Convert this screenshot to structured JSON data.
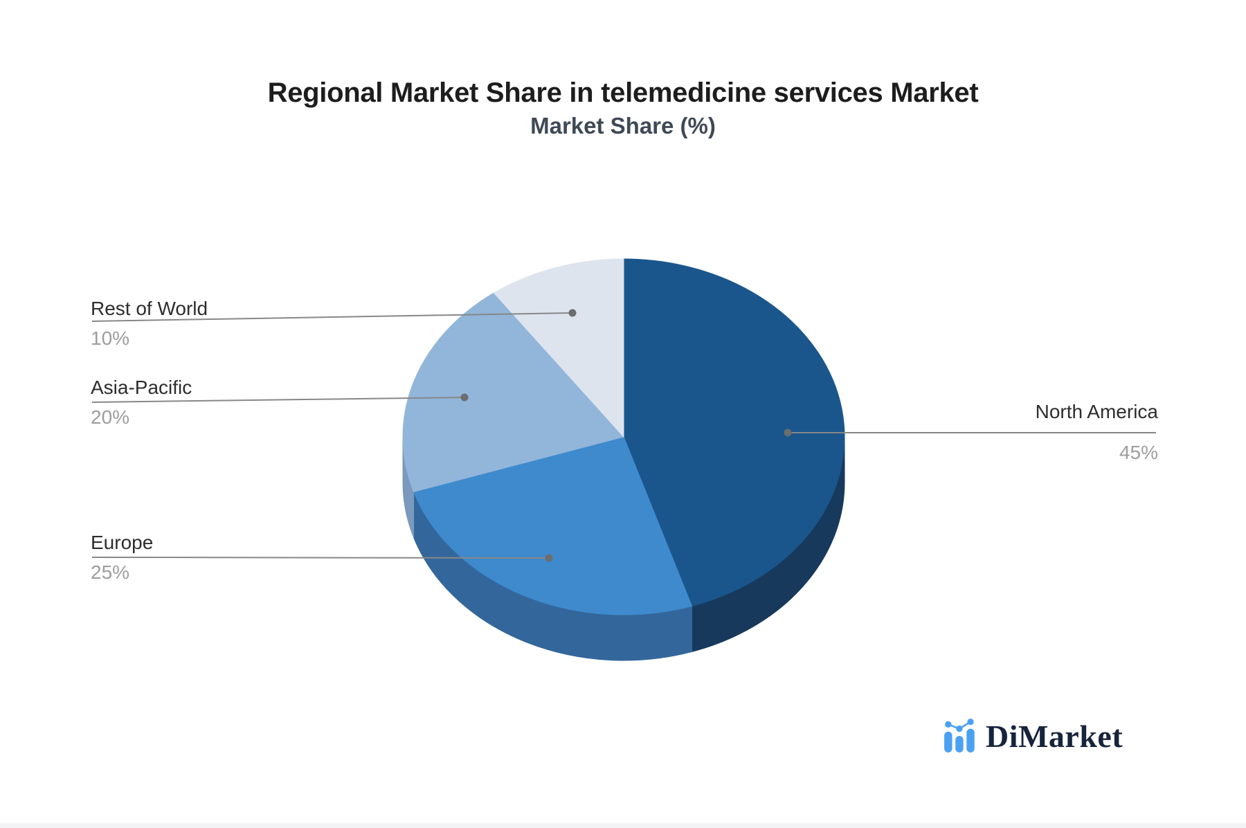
{
  "header": {
    "title": "Regional Market Share in telemedicine services Market",
    "subtitle": "Market Share (%)"
  },
  "chart_data": {
    "type": "pie",
    "style": "3d",
    "title": "Regional Market Share in telemedicine services Market",
    "subtitle": "Market Share (%)",
    "unit": "%",
    "start_angle": "12-o-clock",
    "direction": "clockwise",
    "legend_position": "callout-labels",
    "slices": [
      {
        "label": "North America",
        "value": 45,
        "display": "45%",
        "color": "#1A568C",
        "side_color": "#17395C"
      },
      {
        "label": "Europe",
        "value": 25,
        "display": "25%",
        "color": "#3E8ACD",
        "side_color": "#33679B"
      },
      {
        "label": "Asia-Pacific",
        "value": 20,
        "display": "20%",
        "color": "#92B5DA",
        "side_color": "#7A99BD"
      },
      {
        "label": "Rest of World",
        "value": 10,
        "display": "10%",
        "color": "#DEE4EE",
        "side_color": "#C6CFDC"
      }
    ]
  },
  "callouts": {
    "north_america": {
      "name": "North America",
      "percent": "45%"
    },
    "europe": {
      "name": "Europe",
      "percent": "25%"
    },
    "asia_pacific": {
      "name": "Asia-Pacific",
      "percent": "20%"
    },
    "rest_of_world": {
      "name": "Rest of World",
      "percent": "10%"
    }
  },
  "branding": {
    "logo_text": "DiMarket",
    "logo_icon": "bar-chart-icon"
  },
  "colors": {
    "background": "#FFFFFF",
    "title_text": "#1D1D1D",
    "subtitle_text": "#3F4956",
    "label_text": "#2D2D2D",
    "percent_text": "#9D9D9D",
    "leader_line": "#878787",
    "leader_dot": "#6D6D6D",
    "logo_text": "#16243C",
    "logo_blue": "#4AA1F2"
  }
}
